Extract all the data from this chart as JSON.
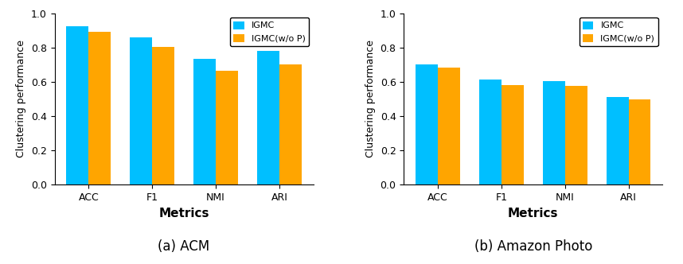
{
  "acm": {
    "categories": [
      "ACC",
      "F1",
      "NMI",
      "ARI"
    ],
    "igmc": [
      0.925,
      0.86,
      0.735,
      0.782
    ],
    "igmc_wo_p": [
      0.893,
      0.805,
      0.665,
      0.702
    ],
    "title": "(a) ACM"
  },
  "amazon": {
    "categories": [
      "ACC",
      "F1",
      "NMI",
      "ARI"
    ],
    "igmc": [
      0.7,
      0.612,
      0.603,
      0.512
    ],
    "igmc_wo_p": [
      0.682,
      0.583,
      0.575,
      0.497
    ],
    "title": "(b) Amazon Photo"
  },
  "bar_color_igmc": "#00BFFF",
  "bar_color_wo_p": "#FFA500",
  "ylabel": "Clustering performance",
  "xlabel": "Metrics",
  "legend_labels": [
    "IGMC",
    "IGMC(w/o P)"
  ],
  "ylim": [
    0.0,
    1.0
  ],
  "bar_width": 0.35
}
